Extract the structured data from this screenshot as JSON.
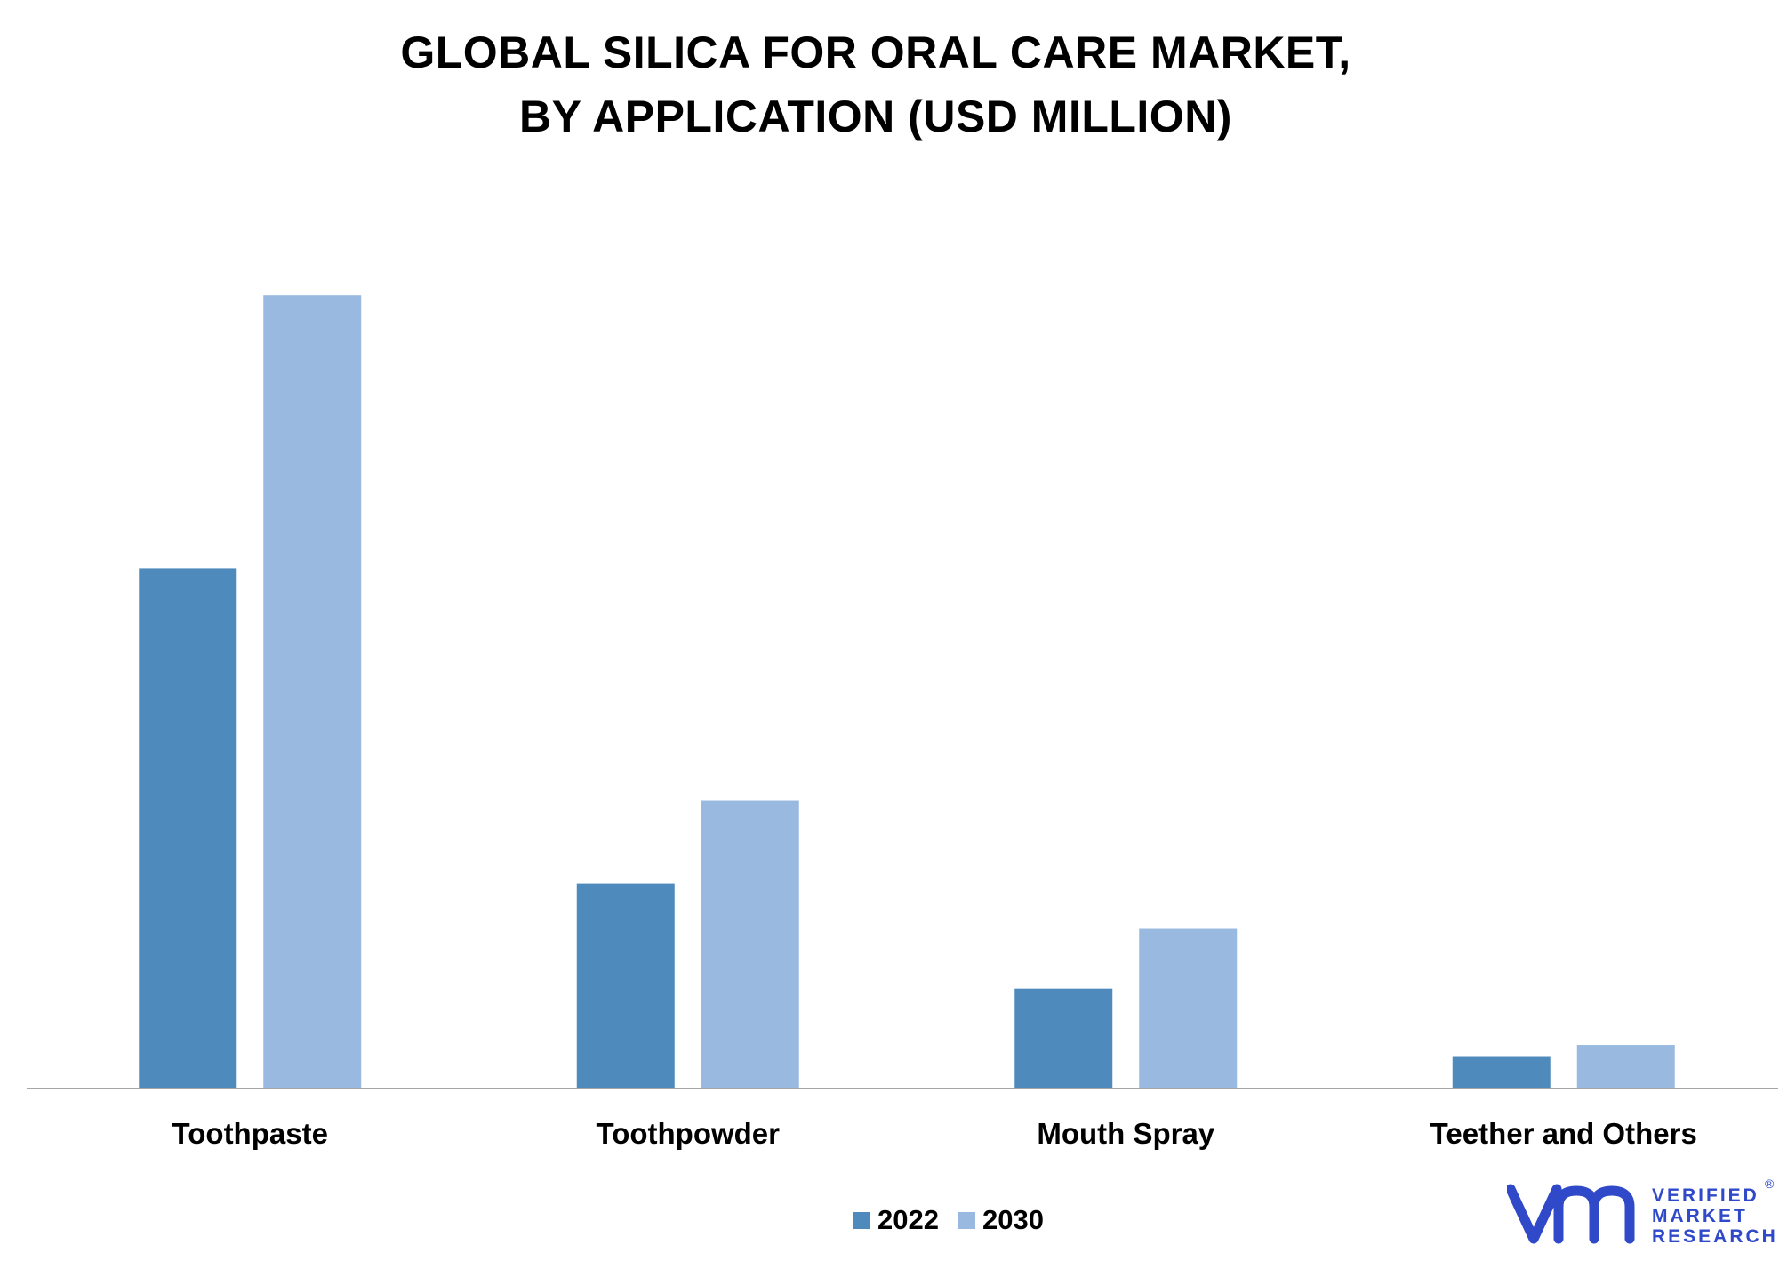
{
  "chart_data": {
    "type": "bar",
    "title": "GLOBAL SILICA FOR ORAL CARE MARKET,",
    "subtitle": "BY APPLICATION (USD MILLION)",
    "categories": [
      "Toothpaste",
      "Toothpowder",
      "Mouth Spray",
      "Teether and Others"
    ],
    "series": [
      {
        "name": "2022",
        "values": [
          610,
          240,
          117,
          38
        ],
        "color": "#4f8abd"
      },
      {
        "name": "2030",
        "values": [
          930,
          338,
          188,
          51
        ],
        "color": "#99b9e0"
      }
    ],
    "xlabel": "",
    "ylabel": "",
    "ylim": [
      0,
      1000
    ],
    "grid": false,
    "legend": "bottom-center"
  },
  "logo": {
    "line1": "VERIFIED",
    "line2": "MARKET",
    "line3": "RESEARCH",
    "reg": "®",
    "color": "#2f49c9"
  }
}
